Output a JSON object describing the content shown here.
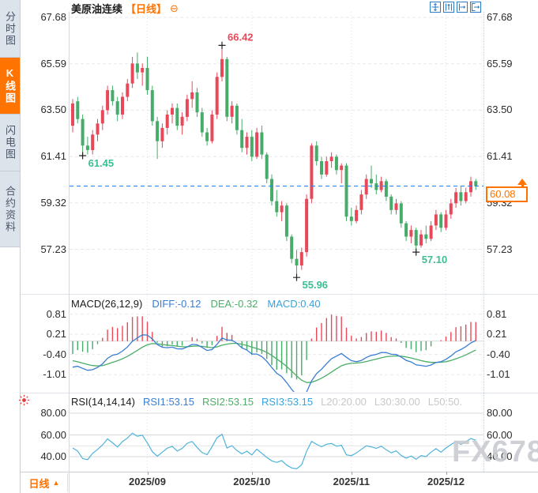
{
  "sidebar": {
    "tabs": [
      {
        "label": "分时图",
        "active": false
      },
      {
        "label": "K线图",
        "active": true
      },
      {
        "label": "闪电图",
        "active": false
      },
      {
        "label": "合约资料",
        "active": false
      }
    ]
  },
  "header": {
    "title": "美原油连续",
    "period_tag": "【日线】",
    "settings_icon": "circle-minus",
    "toolbar_icons": [
      "crosshair-pan",
      "zoom-vertical",
      "zoom-horizontal",
      "pop-out"
    ]
  },
  "price_panel": {
    "axis_labels": [
      "67.68",
      "65.59",
      "63.50",
      "61.41",
      "59.32",
      "57.23"
    ],
    "current_price": "60.08"
  },
  "macd_panel": {
    "header": {
      "name": "MACD(26,12,9)",
      "diff": "DIFF:-0.12",
      "dea": "DEA:-0.32",
      "macd": "MACD:0.40"
    },
    "axis_labels": [
      "0.81",
      "0.21",
      "-0.40",
      "-1.01"
    ]
  },
  "rsi_panel": {
    "header": {
      "name": "RSI(14,14,14)",
      "rsi1": "RSI1:53.15",
      "rsi2": "RSI2:53.15",
      "rsi3": "RSI3:53.15",
      "l20": "L20:20.00",
      "l30": "L30:30.00",
      "l50": "L50:50."
    },
    "axis_labels": [
      "80.00",
      "60.00",
      "40.00"
    ]
  },
  "time_axis": {
    "period_label": "日线",
    "period_arrow": "▲"
  },
  "watermark": "FX678",
  "colors": {
    "accent_orange": "#ff7300",
    "up": "#e8495a",
    "down": "#47ab69",
    "diff_blue": "#3a7dd2",
    "dea_green": "#4cae68",
    "macd_cyan": "#38a3dc",
    "rsi_line": "#4fb3d8",
    "level_gray": "#c8c8c8",
    "current_price_line": "#1e7ef7",
    "annotation_red": "#e8495a",
    "annotation_teal": "#3dbd92"
  },
  "chart_data": [
    {
      "type": "candlestick",
      "title": "美原油连续 日线",
      "y_ticks": [
        67.68,
        65.59,
        63.5,
        61.41,
        59.32,
        57.23
      ],
      "ylim": [
        55.2,
        67.9
      ],
      "x_ticks": [
        {
          "i": 15,
          "label": "2025/09"
        },
        {
          "i": 36,
          "label": "2025/10"
        },
        {
          "i": 56,
          "label": "2025/11"
        },
        {
          "i": 75,
          "label": "2025/12"
        }
      ],
      "last_price": 60.08,
      "annotations": [
        {
          "i": 2,
          "price": 61.45,
          "label": "61.45",
          "color": "teal",
          "position": "below"
        },
        {
          "i": 30,
          "price": 66.42,
          "label": "66.42",
          "color": "red",
          "position": "above"
        },
        {
          "i": 45,
          "price": 55.96,
          "label": "55.96",
          "color": "teal",
          "position": "below"
        },
        {
          "i": 69,
          "price": 57.1,
          "label": "57.10",
          "color": "teal",
          "position": "below"
        }
      ],
      "candles": [
        [
          62.8,
          64.0,
          62.5,
          63.8
        ],
        [
          63.9,
          64.1,
          62.9,
          63.1
        ],
        [
          63.1,
          63.3,
          61.45,
          61.9
        ],
        [
          61.9,
          62.3,
          61.5,
          61.7
        ],
        [
          61.7,
          62.6,
          61.5,
          62.4
        ],
        [
          62.4,
          63.1,
          62.1,
          62.9
        ],
        [
          62.9,
          63.7,
          62.6,
          63.5
        ],
        [
          63.5,
          64.6,
          63.3,
          64.4
        ],
        [
          64.4,
          64.6,
          63.7,
          63.9
        ],
        [
          63.9,
          64.1,
          63.0,
          63.3
        ],
        [
          63.3,
          64.3,
          63.1,
          64.1
        ],
        [
          64.1,
          64.9,
          63.9,
          64.7
        ],
        [
          64.7,
          65.9,
          64.5,
          65.6
        ],
        [
          65.6,
          66.1,
          64.9,
          65.2
        ],
        [
          65.2,
          65.6,
          64.6,
          65.4
        ],
        [
          65.4,
          65.9,
          64.2,
          64.4
        ],
        [
          64.4,
          64.6,
          62.8,
          63.0
        ],
        [
          63.0,
          63.2,
          61.3,
          62.1
        ],
        [
          62.1,
          62.9,
          61.8,
          62.7
        ],
        [
          62.7,
          63.5,
          62.4,
          63.3
        ],
        [
          63.3,
          63.8,
          62.9,
          63.6
        ],
        [
          63.6,
          63.8,
          62.6,
          62.8
        ],
        [
          62.8,
          63.4,
          62.4,
          63.2
        ],
        [
          63.2,
          64.2,
          63.0,
          64.0
        ],
        [
          64.0,
          64.8,
          63.6,
          64.3
        ],
        [
          64.3,
          64.5,
          63.2,
          63.4
        ],
        [
          63.4,
          63.6,
          62.3,
          62.5
        ],
        [
          62.5,
          62.7,
          61.9,
          62.1
        ],
        [
          62.1,
          63.5,
          62.0,
          63.3
        ],
        [
          63.3,
          65.2,
          63.1,
          65.0
        ],
        [
          65.0,
          66.42,
          64.8,
          65.8
        ],
        [
          65.8,
          65.9,
          63.0,
          63.2
        ],
        [
          63.2,
          63.9,
          62.9,
          63.7
        ],
        [
          63.7,
          63.8,
          62.4,
          62.6
        ],
        [
          62.6,
          63.1,
          61.6,
          61.8
        ],
        [
          61.8,
          62.5,
          61.5,
          62.3
        ],
        [
          62.3,
          62.6,
          61.2,
          61.4
        ],
        [
          61.4,
          62.7,
          61.3,
          62.5
        ],
        [
          62.5,
          62.8,
          61.3,
          61.5
        ],
        [
          61.5,
          61.6,
          60.2,
          60.4
        ],
        [
          60.4,
          60.6,
          59.2,
          59.4
        ],
        [
          59.4,
          59.9,
          58.7,
          58.9
        ],
        [
          58.9,
          59.4,
          58.5,
          59.2
        ],
        [
          59.2,
          59.3,
          57.6,
          57.8
        ],
        [
          57.8,
          57.9,
          56.6,
          56.8
        ],
        [
          56.8,
          57.2,
          55.96,
          56.5
        ],
        [
          56.5,
          57.3,
          56.3,
          57.1
        ],
        [
          57.1,
          59.7,
          56.9,
          59.5
        ],
        [
          59.5,
          62.0,
          59.3,
          61.9
        ],
        [
          61.9,
          62.1,
          61.0,
          61.2
        ],
        [
          61.2,
          61.4,
          60.4,
          60.6
        ],
        [
          60.6,
          61.4,
          60.5,
          61.2
        ],
        [
          61.2,
          61.6,
          60.9,
          61.4
        ],
        [
          61.4,
          61.5,
          60.6,
          60.8
        ],
        [
          60.8,
          61.1,
          60.2,
          61.0
        ],
        [
          61.0,
          61.1,
          58.5,
          58.7
        ],
        [
          58.7,
          59.1,
          58.3,
          58.5
        ],
        [
          58.5,
          59.2,
          58.4,
          59.0
        ],
        [
          59.0,
          59.9,
          58.8,
          59.7
        ],
        [
          59.7,
          60.6,
          59.5,
          60.4
        ],
        [
          60.4,
          61.0,
          60.0,
          60.2
        ],
        [
          60.2,
          60.6,
          59.7,
          59.9
        ],
        [
          59.9,
          60.5,
          59.8,
          60.3
        ],
        [
          60.3,
          60.4,
          59.4,
          59.6
        ],
        [
          59.6,
          59.7,
          58.8,
          59.0
        ],
        [
          59.0,
          59.5,
          58.8,
          59.3
        ],
        [
          59.3,
          59.4,
          58.2,
          58.4
        ],
        [
          58.4,
          58.5,
          57.6,
          57.8
        ],
        [
          57.8,
          58.3,
          57.5,
          58.1
        ],
        [
          58.1,
          58.2,
          57.1,
          57.4
        ],
        [
          57.4,
          58.1,
          57.3,
          57.9
        ],
        [
          57.9,
          58.3,
          57.5,
          57.7
        ],
        [
          57.7,
          58.5,
          57.6,
          58.3
        ],
        [
          58.3,
          59.0,
          58.1,
          58.8
        ],
        [
          58.8,
          58.9,
          58.0,
          58.2
        ],
        [
          58.2,
          59.0,
          58.1,
          58.8
        ],
        [
          58.8,
          59.5,
          58.6,
          59.3
        ],
        [
          59.3,
          60.0,
          59.1,
          59.8
        ],
        [
          59.8,
          60.1,
          59.2,
          59.4
        ],
        [
          59.4,
          60.0,
          59.3,
          59.8
        ],
        [
          59.8,
          60.5,
          59.6,
          60.3
        ],
        [
          60.3,
          60.4,
          59.9,
          60.08
        ]
      ]
    },
    {
      "type": "macd",
      "params": [
        26,
        12,
        9
      ],
      "diff": -0.12,
      "dea": -0.32,
      "macd": 0.4,
      "y_ticks": [
        0.81,
        0.21,
        -0.4,
        -1.01
      ]
    },
    {
      "type": "rsi",
      "params": [
        14,
        14,
        14
      ],
      "rsi1": 53.15,
      "rsi2": 53.15,
      "rsi3": 53.15,
      "levels": {
        "L20": 20.0,
        "L30": 30.0,
        "L50": 50.0
      },
      "y_ticks": [
        80.0,
        60.0,
        40.0
      ]
    }
  ]
}
